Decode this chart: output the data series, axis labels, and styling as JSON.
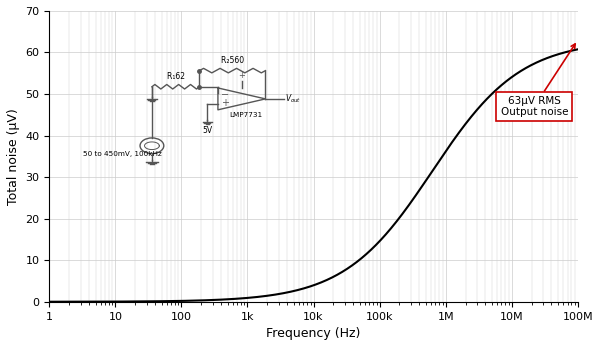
{
  "title": "",
  "xlabel": "Frequency (Hz)",
  "ylabel": "Total noise (μV)",
  "ylim": [
    0,
    70
  ],
  "yticks": [
    0,
    10,
    20,
    30,
    40,
    50,
    60,
    70
  ],
  "xtick_labels": [
    "1",
    "10",
    "100",
    "1k",
    "10k",
    "100k",
    "1M",
    "10M",
    "100M"
  ],
  "xtick_vals": [
    1,
    10,
    100,
    1000,
    10000,
    100000,
    1000000,
    10000000,
    100000000
  ],
  "curve_color": "#000000",
  "background_color": "#ffffff",
  "grid_color": "#cccccc",
  "annotation_text": "63μV RMS\nOutput noise",
  "annotation_box_color": "#ffffff",
  "annotation_box_edge": "#cc0000",
  "arrow_color": "#cc0000",
  "circuit_color": "#555555"
}
